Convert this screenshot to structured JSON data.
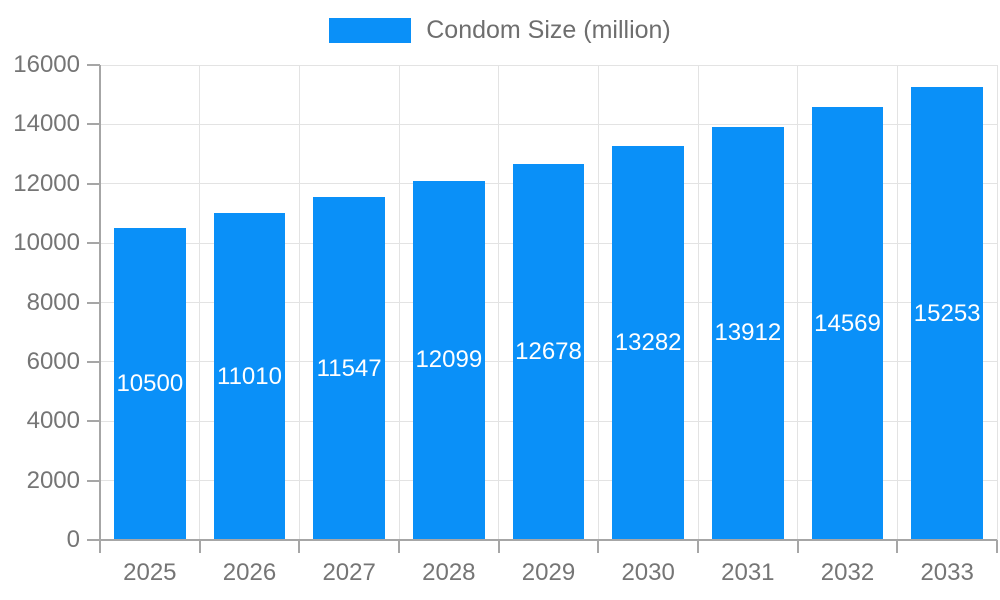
{
  "chart_data": {
    "type": "bar",
    "title": "",
    "legend_position": "top",
    "categories": [
      "2025",
      "2026",
      "2027",
      "2028",
      "2029",
      "2030",
      "2031",
      "2032",
      "2033"
    ],
    "series": [
      {
        "name": "Condom Size (million)",
        "values": [
          10500,
          11010,
          11547,
          12099,
          12678,
          13282,
          13912,
          14569,
          15253
        ]
      }
    ],
    "value_labels_shown": true,
    "xlabel": "",
    "ylabel": "",
    "ylim": [
      0,
      16000
    ],
    "ytick_step": 2000,
    "grid": true,
    "colors": {
      "bar": "#0a90f8",
      "bar_value_text": "#ffffff",
      "axis_text": "#757575",
      "legend_text": "#6e6e6e",
      "axis_line": "#a6a6a6",
      "gridline": "#e3e3e3",
      "background": "#ffffff"
    }
  }
}
